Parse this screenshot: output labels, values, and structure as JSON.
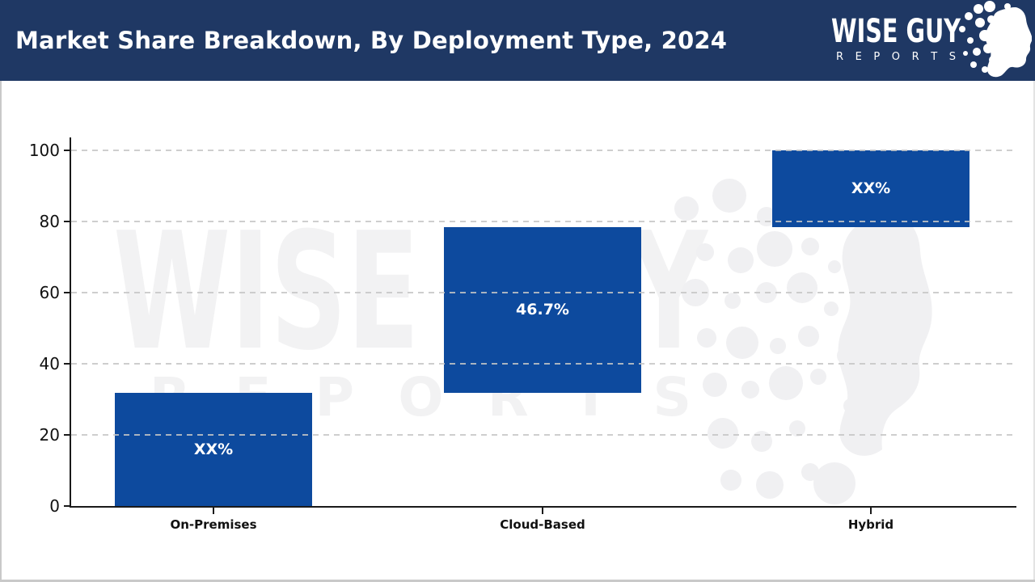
{
  "header": {
    "title": "Market Share Breakdown, By Deployment Type, 2024",
    "logo": {
      "brand_line1": "WISE GUY",
      "brand_line2": "R E P O R T S"
    }
  },
  "watermark": {
    "big_text": "WISE GUY",
    "sub_text": "R E P O R T S"
  },
  "colors": {
    "header_bg": "#1F3864",
    "bar_fill": "#0D4A9E",
    "bar_label_text": "#FFFFFF",
    "grid_line": "#C6C6C6",
    "axis_line": "#1A1A1A",
    "tick_text": "#111111",
    "watermark_gray": "#F2F2F3",
    "frame_gray": "#C9C9C9"
  },
  "chart_data": {
    "type": "bar",
    "variant": "floating-segment-breakdown",
    "title": "Market Share Breakdown, By Deployment Type, 2024",
    "categories": [
      "On-Premises",
      "Cloud-Based",
      "Hybrid"
    ],
    "segments": [
      {
        "category": "On-Premises",
        "start": 0,
        "end": 31.8,
        "label": "XX%"
      },
      {
        "category": "Cloud-Based",
        "start": 31.8,
        "end": 78.5,
        "label": "46.7%"
      },
      {
        "category": "Hybrid",
        "start": 78.5,
        "end": 100,
        "label": "XX%"
      }
    ],
    "xlabel": "",
    "ylabel": "",
    "ylim": [
      0,
      100
    ],
    "yticks": [
      0,
      20,
      40,
      60,
      80,
      100
    ],
    "grid": "horizontal dashed, drawn over bars",
    "legend": "none"
  }
}
